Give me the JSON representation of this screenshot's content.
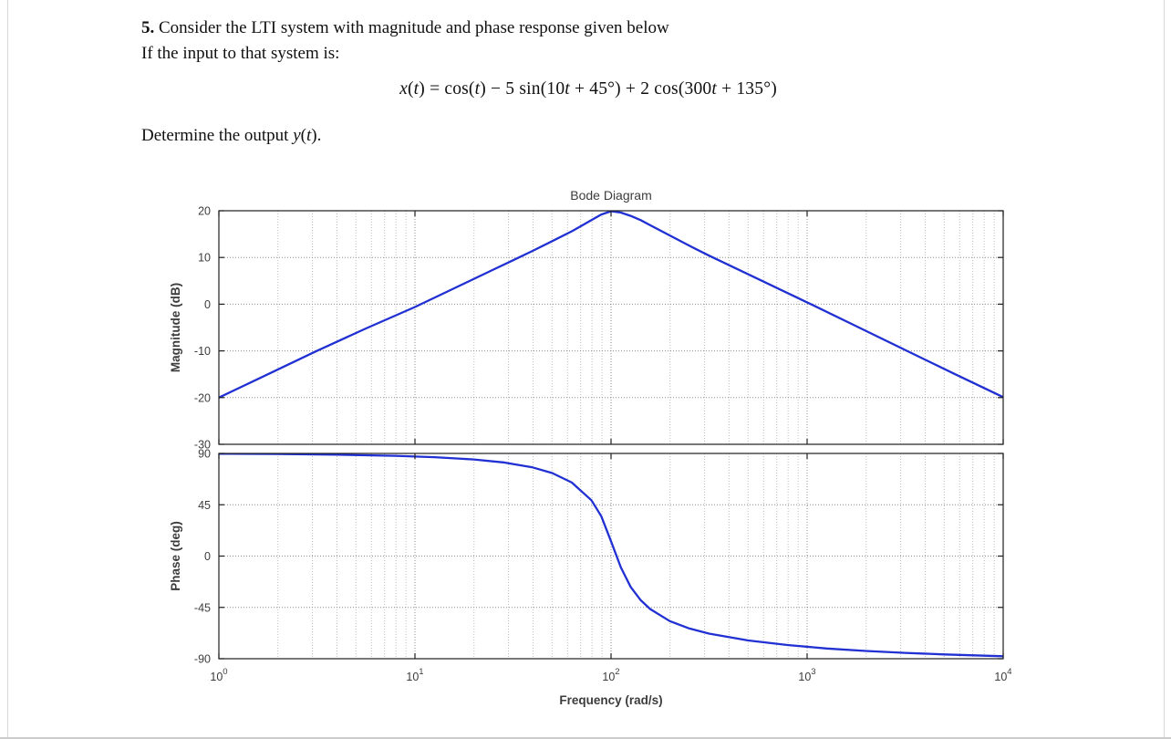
{
  "page": {
    "question_number": "5.",
    "question_line1": " Consider the LTI system with magnitude and phase response given below",
    "question_line2": "If the input to that system is:",
    "equation_segments": [
      {
        "t": "var",
        "text": "x"
      },
      {
        "t": "plain",
        "text": "("
      },
      {
        "t": "var",
        "text": "t"
      },
      {
        "t": "plain",
        "text": ") = cos("
      },
      {
        "t": "var",
        "text": "t"
      },
      {
        "t": "plain",
        "text": ") − 5 sin(10"
      },
      {
        "t": "var",
        "text": "t"
      },
      {
        "t": "plain",
        "text": " + 45°) + 2 cos(300"
      },
      {
        "t": "var",
        "text": "t"
      },
      {
        "t": "plain",
        "text": " + 135°)"
      }
    ],
    "determine_segments": [
      {
        "t": "plain",
        "text": "Determine the output "
      },
      {
        "t": "var",
        "text": "y"
      },
      {
        "t": "plain",
        "text": "("
      },
      {
        "t": "var",
        "text": "t"
      },
      {
        "t": "plain",
        "text": ")."
      }
    ]
  },
  "chart_data": {
    "type": "line",
    "title": "Bode Diagram",
    "xlabel": "Frequency  (rad/s)",
    "x_scale": "log",
    "x_format": "points given as [log10(omega), value]",
    "xlim": [
      1,
      10000
    ],
    "x_tick_exponents": [
      0,
      1,
      2,
      3,
      4
    ],
    "grid": true,
    "legend": "none",
    "subplots": [
      {
        "name": "magnitude",
        "ylabel": "Magnitude (dB)",
        "ylim": [
          -30,
          20
        ],
        "yticks": [
          20,
          10,
          0,
          -10,
          -20,
          -30
        ],
        "series": [
          {
            "color": "#2030d2",
            "points": [
              [
                0,
                -20
              ],
              [
                0.25,
                -15
              ],
              [
                0.5,
                -10
              ],
              [
                0.75,
                -5.2
              ],
              [
                1.0,
                -0.6
              ],
              [
                1.2,
                3.4
              ],
              [
                1.4,
                7.4
              ],
              [
                1.5,
                9.4
              ],
              [
                1.6,
                11.4
              ],
              [
                1.7,
                13.5
              ],
              [
                1.8,
                15.6
              ],
              [
                1.85,
                16.8
              ],
              [
                1.9,
                18.0
              ],
              [
                1.95,
                19.2
              ],
              [
                2.0,
                19.9
              ],
              [
                2.05,
                19.6
              ],
              [
                2.1,
                18.9
              ],
              [
                2.15,
                18.0
              ],
              [
                2.2,
                16.9
              ],
              [
                2.3,
                14.7
              ],
              [
                2.4,
                12.5
              ],
              [
                2.5,
                10.4
              ],
              [
                2.75,
                5.4
              ],
              [
                3.0,
                0.4
              ],
              [
                3.25,
                -4.7
              ],
              [
                3.5,
                -9.8
              ],
              [
                3.75,
                -14.9
              ],
              [
                4.0,
                -19.9
              ]
            ]
          }
        ]
      },
      {
        "name": "phase",
        "ylabel": "Phase (deg)",
        "ylim": [
          -90,
          90
        ],
        "yticks": [
          90,
          45,
          0,
          -45,
          -90
        ],
        "series": [
          {
            "color": "#2030d2",
            "points": [
              [
                0,
                89.8
              ],
              [
                0.3,
                89.5
              ],
              [
                0.6,
                88.9
              ],
              [
                0.9,
                87.9
              ],
              [
                1.1,
                86.7
              ],
              [
                1.3,
                84.7
              ],
              [
                1.45,
                82.2
              ],
              [
                1.6,
                77.8
              ],
              [
                1.7,
                72.8
              ],
              [
                1.8,
                64.5
              ],
              [
                1.9,
                49
              ],
              [
                1.95,
                35
              ],
              [
                2.0,
                13
              ],
              [
                2.05,
                -10
              ],
              [
                2.1,
                -27
              ],
              [
                2.15,
                -38.5
              ],
              [
                2.2,
                -46.5
              ],
              [
                2.3,
                -57
              ],
              [
                2.4,
                -63.5
              ],
              [
                2.5,
                -68
              ],
              [
                2.7,
                -74
              ],
              [
                2.9,
                -78
              ],
              [
                3.1,
                -81
              ],
              [
                3.3,
                -83.2
              ],
              [
                3.5,
                -84.9
              ],
              [
                3.7,
                -86.2
              ],
              [
                4.0,
                -87.8
              ]
            ]
          }
        ]
      }
    ]
  }
}
